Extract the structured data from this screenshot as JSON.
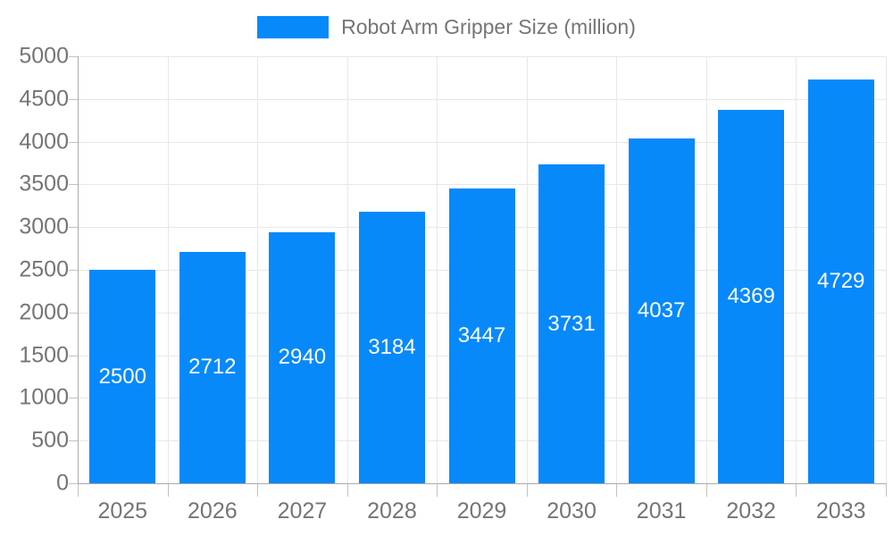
{
  "legend": {
    "label": "Robot Arm Gripper Size (million)"
  },
  "chart_data": {
    "type": "bar",
    "title": "Robot Arm Gripper Size (million)",
    "series_name": "Robot Arm Gripper Size (million)",
    "categories": [
      "2025",
      "2026",
      "2027",
      "2028",
      "2029",
      "2030",
      "2031",
      "2032",
      "2033"
    ],
    "values": [
      2500,
      2712,
      2940,
      3184,
      3447,
      3731,
      4037,
      4369,
      4729
    ],
    "xlabel": "",
    "ylabel": "",
    "ylim": [
      0,
      5000
    ],
    "ytick_step": 500,
    "ytick_labels": [
      "0",
      "500",
      "1000",
      "1500",
      "2000",
      "2500",
      "3000",
      "3500",
      "4000",
      "4500",
      "5000"
    ],
    "grid": true,
    "grid_vertical": true,
    "legend_position": "top-center",
    "value_label_position": "inside-center",
    "colors": {
      "bar": "#0789fa",
      "value_label": "#ffffff",
      "axis_text": "#757575",
      "axis_line": "#aaaaaa",
      "tick": "#c2c2c2",
      "grid": "#e8e8e8",
      "background": "#ffffff"
    }
  }
}
